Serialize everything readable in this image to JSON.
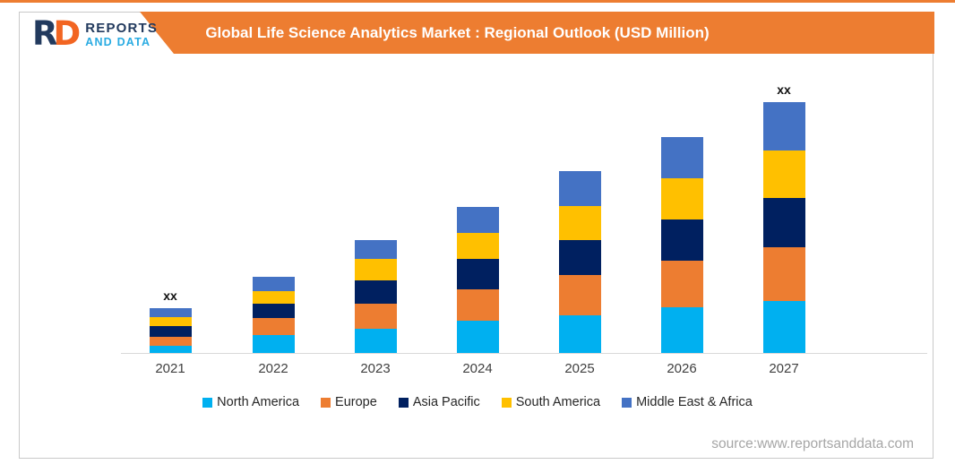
{
  "header": {
    "title": "Global Life Science Analytics Market : Regional Outlook (USD Million)",
    "banner_color": "#ED7D31",
    "logo": {
      "mark_r": "R",
      "mark_d": "D",
      "line1": "REPORTS",
      "line2": "AND DATA",
      "navy": "#223A5E",
      "cyan": "#29ABE2",
      "orange": "#F26522"
    }
  },
  "footer": {
    "source": "source:www.reportsanddata.com"
  },
  "chart_data": {
    "type": "bar",
    "stacked": true,
    "title": "Global Life Science Analytics Market : Regional Outlook (USD Million)",
    "categories": [
      "2021",
      "2022",
      "2023",
      "2024",
      "2025",
      "2026",
      "2027"
    ],
    "series": [
      {
        "name": "North America",
        "color": "#00B0F0",
        "values": [
          8,
          20,
          27,
          36,
          42,
          51,
          58
        ]
      },
      {
        "name": "Europe",
        "color": "#ED7D31",
        "values": [
          10,
          19,
          28,
          35,
          45,
          52,
          60
        ]
      },
      {
        "name": "Asia Pacific",
        "color": "#002060",
        "values": [
          12,
          16,
          26,
          34,
          39,
          46,
          55
        ]
      },
      {
        "name": "South America",
        "color": "#FFC000",
        "values": [
          10,
          14,
          24,
          29,
          38,
          46,
          53
        ]
      },
      {
        "name": "Middle East & Africa",
        "color": "#4472C4",
        "values": [
          10,
          16,
          21,
          29,
          39,
          46,
          54
        ]
      }
    ],
    "bar_labels": {
      "2021": "xx",
      "2027": "xx"
    },
    "value_note": "actual values masked as 'xx' in source image; series values are relative magnitudes estimated from bar pixel heights",
    "xlabel": "",
    "ylabel": "",
    "y_axis_visible": false,
    "grid": false,
    "legend_position": "bottom"
  }
}
